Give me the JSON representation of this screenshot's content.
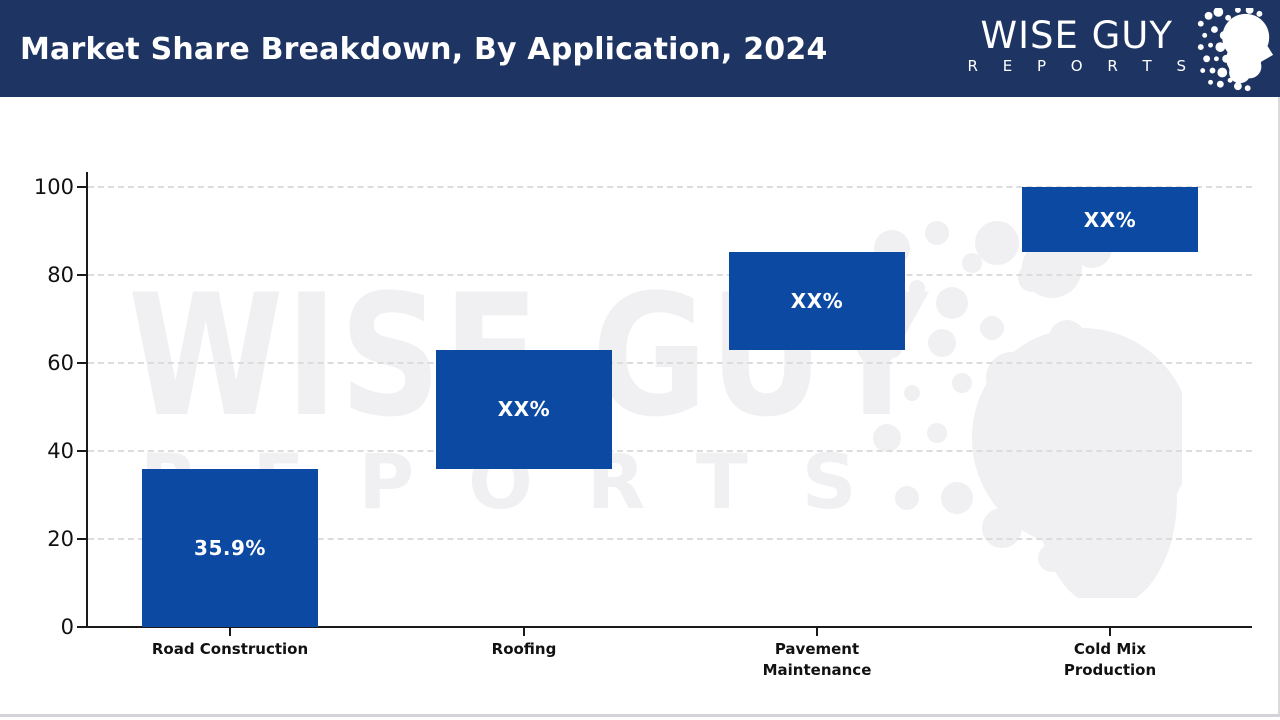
{
  "header": {
    "title": "Market Share Breakdown, By Application, 2024",
    "bg_color": "#1e3462",
    "logo": {
      "line1": "WISE GUY",
      "line2": "R E P O R T S",
      "icon": "dotted-face-profile"
    }
  },
  "watermark": {
    "line1": "WISE GUY",
    "line2": "REPORTS",
    "color": "#f0f0f2"
  },
  "chart_data": {
    "type": "bar",
    "subtype": "waterfall",
    "title": "Market Share Breakdown, By Application, 2024",
    "categories": [
      "Road Construction",
      "Roofing",
      "Pavement Maintenance",
      "Cold Mix Production"
    ],
    "category_lines": [
      [
        "Road Construction"
      ],
      [
        "Roofing"
      ],
      [
        "Pavement",
        "Maintenance"
      ],
      [
        "Cold Mix",
        "Production"
      ]
    ],
    "series": [
      {
        "name": "Market Share (%)",
        "segments": [
          {
            "category": "Road Construction",
            "start": 0,
            "end": 35.9,
            "label": "35.9%"
          },
          {
            "category": "Roofing",
            "start": 35.9,
            "end": 63.0,
            "label": "XX%"
          },
          {
            "category": "Pavement Maintenance",
            "start": 63.0,
            "end": 85.2,
            "label": "XX%"
          },
          {
            "category": "Cold Mix Production",
            "start": 85.2,
            "end": 100,
            "label": "XX%"
          }
        ]
      }
    ],
    "bar_color": "#0c49a2",
    "bar_label_color": "#ffffff",
    "xlabel": "",
    "ylabel": "",
    "ylim": [
      0,
      100
    ],
    "yticks": [
      0,
      20,
      40,
      60,
      80,
      100
    ],
    "grid": "horizontal-dashed",
    "legend": "none"
  }
}
